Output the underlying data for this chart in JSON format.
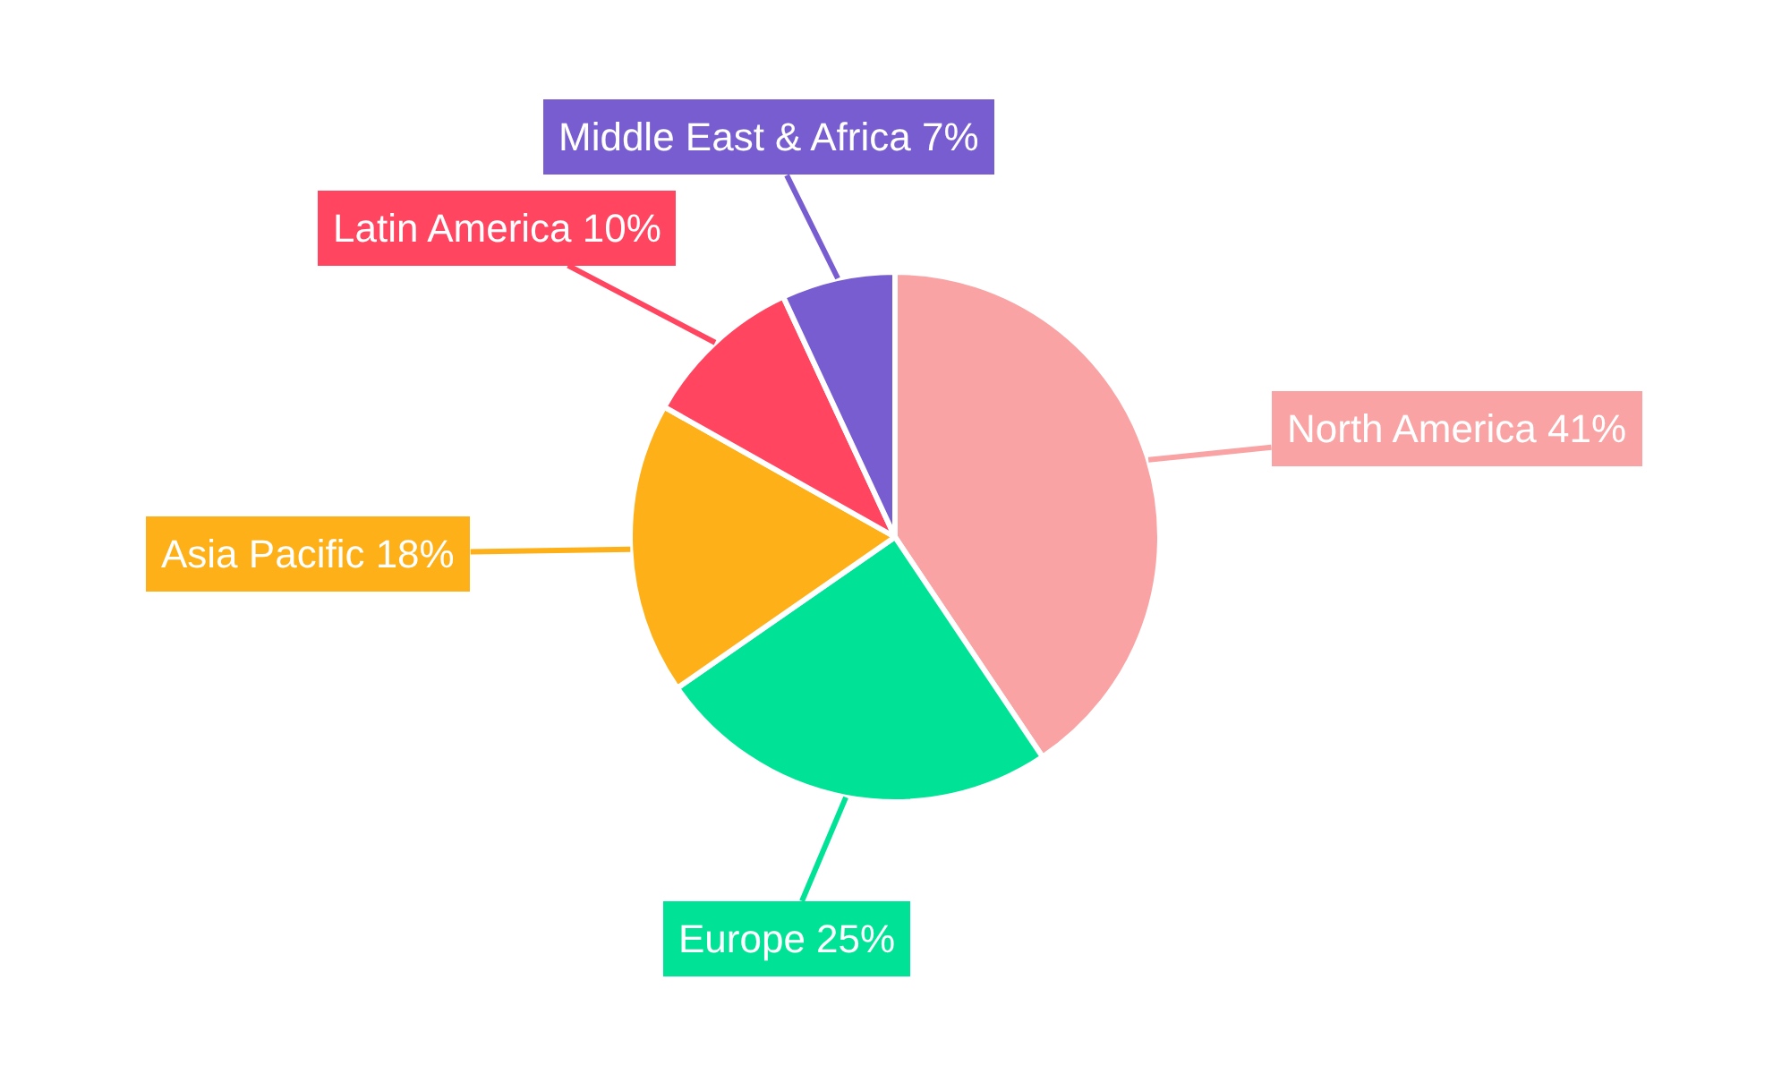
{
  "chart_data": {
    "type": "pie",
    "categories": [
      "North America",
      "Europe",
      "Asia Pacific",
      "Latin America",
      "Middle East & Africa"
    ],
    "values": [
      41,
      25,
      18,
      10,
      7
    ],
    "value_labels": [
      "41%",
      "25%",
      "18%",
      "10%",
      "7%"
    ],
    "colors": [
      "#f9a3a4",
      "#00e396",
      "#feb019",
      "#ff4560",
      "#775dd0"
    ],
    "legend": false
  }
}
